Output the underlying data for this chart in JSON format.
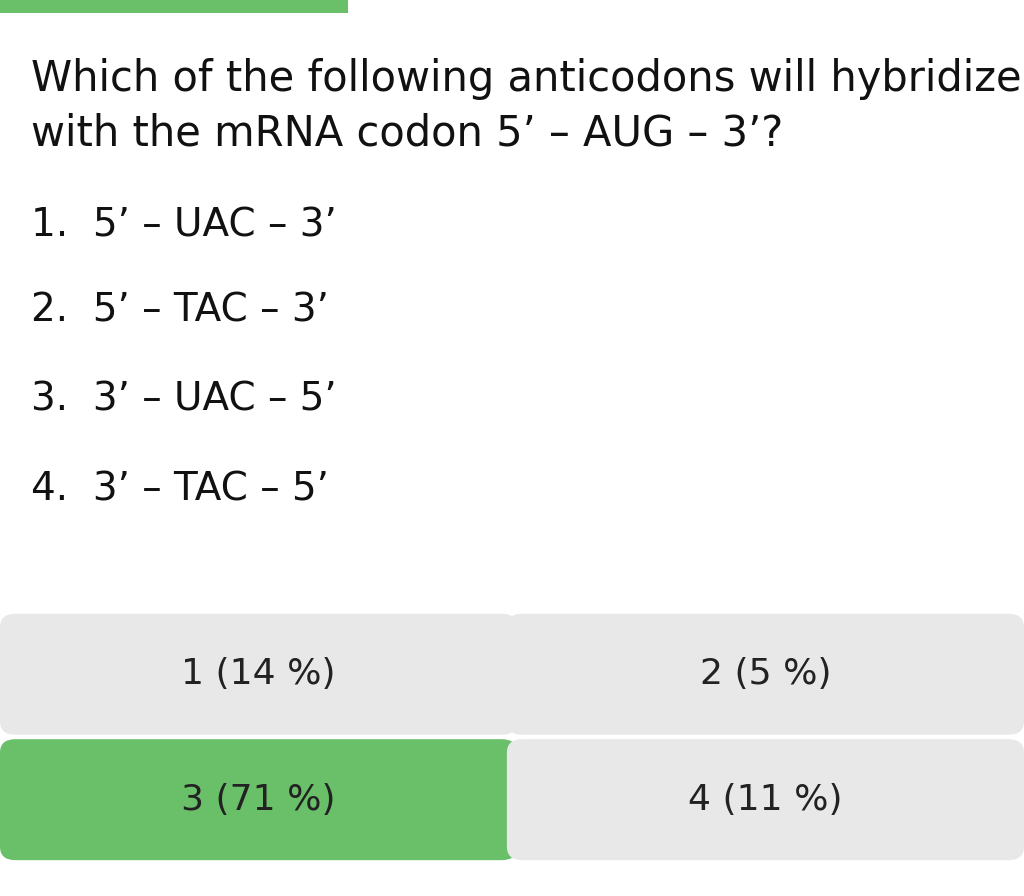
{
  "title_line1": "Which of the following anticodons will hybridize",
  "title_line2": "with the mRNA codon 5’ – AUG – 3’?",
  "options": [
    "1.  5’ – UAC – 3’",
    "2.  5’ – TAC – 3’",
    "3.  3’ – UAC – 5’",
    "4.  3’ – TAC – 5’"
  ],
  "buttons": [
    {
      "label": "1 (14 %)",
      "color": "#e8e8e8",
      "text_color": "#222222"
    },
    {
      "label": "2 (5 %)",
      "color": "#e8e8e8",
      "text_color": "#222222"
    },
    {
      "label": "3 (71 %)",
      "color": "#6abf69",
      "text_color": "#222222"
    },
    {
      "label": "4 (11 %)",
      "color": "#e8e8e8",
      "text_color": "#222222"
    }
  ],
  "background_color": "#ffffff",
  "top_bar_color": "#6abf69",
  "title_fontsize": 30,
  "option_fontsize": 28,
  "button_fontsize": 26
}
